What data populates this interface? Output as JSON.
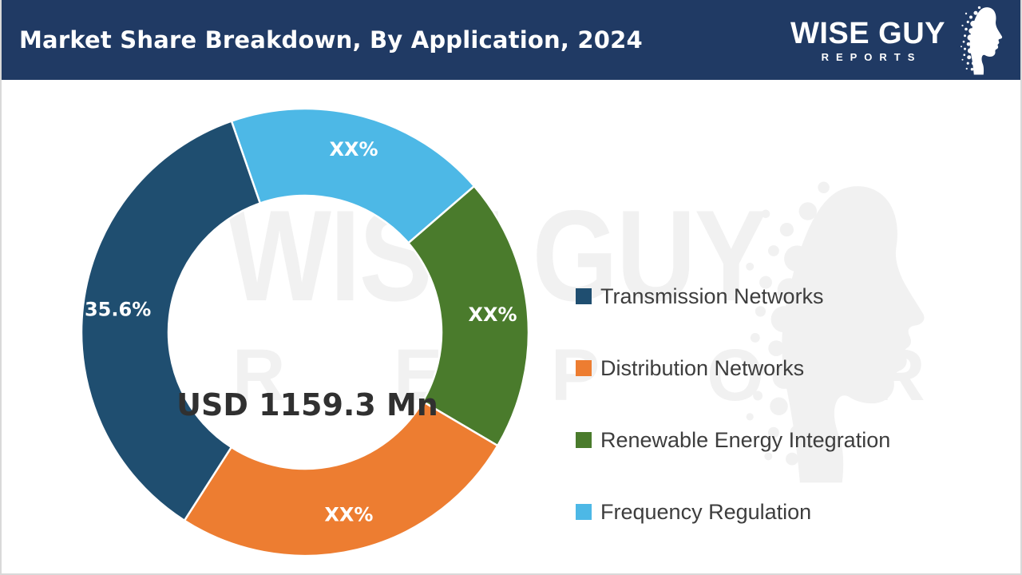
{
  "header": {
    "title": "Market Share Breakdown, By Application, 2024",
    "bg_color": "#203a64",
    "logo": {
      "line1": "WISE GUY",
      "line2": "REPORTS"
    }
  },
  "watermark": {
    "line1": "WISE GUY",
    "line2": "R E P O R T S"
  },
  "chart_data": {
    "type": "pie",
    "subtype": "donut",
    "title": "Market Share Breakdown, By Application, 2024",
    "center_label": "USD 1159.3 Mn",
    "start_angle_deg": -19.2,
    "direction": "clockwise",
    "inner_radius_ratio": 0.61,
    "legend_position": "right",
    "segments": [
      {
        "name": "Frequency Regulation",
        "value_pct": 19.0,
        "label": "XX%",
        "color": "#4db8e6"
      },
      {
        "name": "Renewable Energy Integration",
        "value_pct": 19.8,
        "label": "XX%",
        "color": "#4a7b2c"
      },
      {
        "name": "Distribution Networks",
        "value_pct": 25.6,
        "label": "XX%",
        "color": "#ed7d31"
      },
      {
        "name": "Transmission Networks",
        "value_pct": 35.6,
        "label": "35.6%",
        "color": "#1f4e70"
      }
    ]
  },
  "legend": {
    "items": [
      {
        "label": "Transmission Networks",
        "color": "#1f4e70"
      },
      {
        "label": "Distribution Networks",
        "color": "#ed7d31"
      },
      {
        "label": "Renewable Energy Integration",
        "color": "#4a7b2c"
      },
      {
        "label": "Frequency Regulation",
        "color": "#4db8e6"
      }
    ]
  }
}
